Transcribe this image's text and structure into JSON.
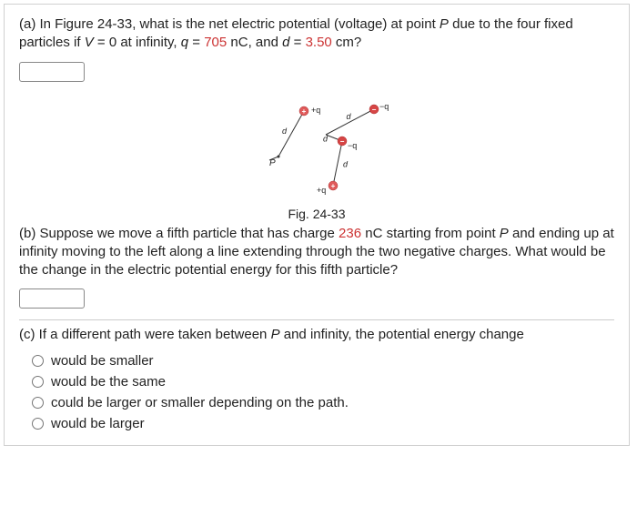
{
  "partA": {
    "pre": "(a) In Figure 24-33, what is the net electric potential (voltage) at point ",
    "P": "P",
    "mid1": " due to the four fixed particles if ",
    "V": "V",
    "mid2": " = 0 at infinity, ",
    "q": "q",
    "mid3": " = ",
    "qval": "705",
    "mid4": " nC, and ",
    "d": "d",
    "mid5": " = ",
    "dval": "3.50",
    "mid6": " cm?"
  },
  "figure": {
    "caption": "Fig. 24-33",
    "labels": {
      "plusqTop": "+q",
      "minusqTop": "−q",
      "minusqMid": "−q",
      "plusqBot": "+q",
      "d": "d",
      "P": "P"
    },
    "colors": {
      "line": "#333333",
      "plus": "#e05a5a",
      "minus": "#d64545",
      "text": "#222222",
      "Ptext": "#222222"
    }
  },
  "partB": {
    "pre": "(b) Suppose we move a fifth particle that has charge ",
    "chargeVal": "236",
    "post": " nC starting from point ",
    "P": "P",
    "rest": " and ending up at infinity moving to the left along a line extending through the two negative charges. What would be the change in the electric potential energy for this fifth particle?"
  },
  "partC": {
    "text1": "(c) If a different path were taken between ",
    "P": "P",
    "text2": " and infinity, the potential energy change",
    "options": [
      "would be smaller",
      "would be the same",
      "could be larger or smaller depending on the path.",
      "would be larger"
    ]
  }
}
